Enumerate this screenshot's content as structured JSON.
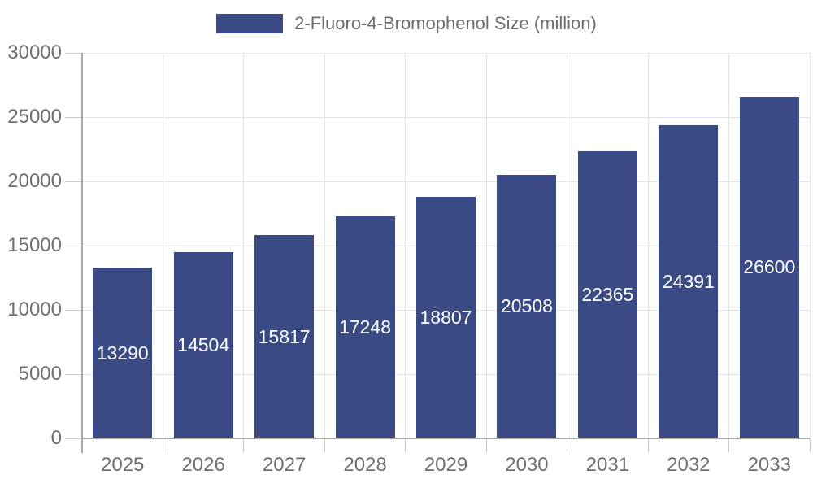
{
  "chart_data": {
    "type": "bar",
    "title": "2-Fluoro-4-Bromophenol Size (million)",
    "categories": [
      "2025",
      "2026",
      "2027",
      "2028",
      "2029",
      "2030",
      "2031",
      "2032",
      "2033"
    ],
    "series": [
      {
        "name": "2-Fluoro-4-Bromophenol Size (million)",
        "values": [
          13290,
          14504,
          15817,
          17248,
          18807,
          20508,
          22365,
          24391,
          26600
        ]
      }
    ],
    "xlabel": "",
    "ylabel": "",
    "ylim": [
      0,
      30000
    ],
    "yticks": [
      0,
      5000,
      10000,
      15000,
      20000,
      25000,
      30000
    ],
    "grid": true,
    "legend_position": "top-center",
    "bar_value_labels": "inside-middle"
  },
  "colors": {
    "bar": "#394A85",
    "bar_label_text": "#FFFFFF",
    "axis_text": "#707070",
    "legend_text": "#6E6E6E",
    "gridline": "#E3E3E7",
    "tick": "#C9C9C9",
    "axis_line": "#A8A8A8",
    "background": "#FFFFFF"
  }
}
